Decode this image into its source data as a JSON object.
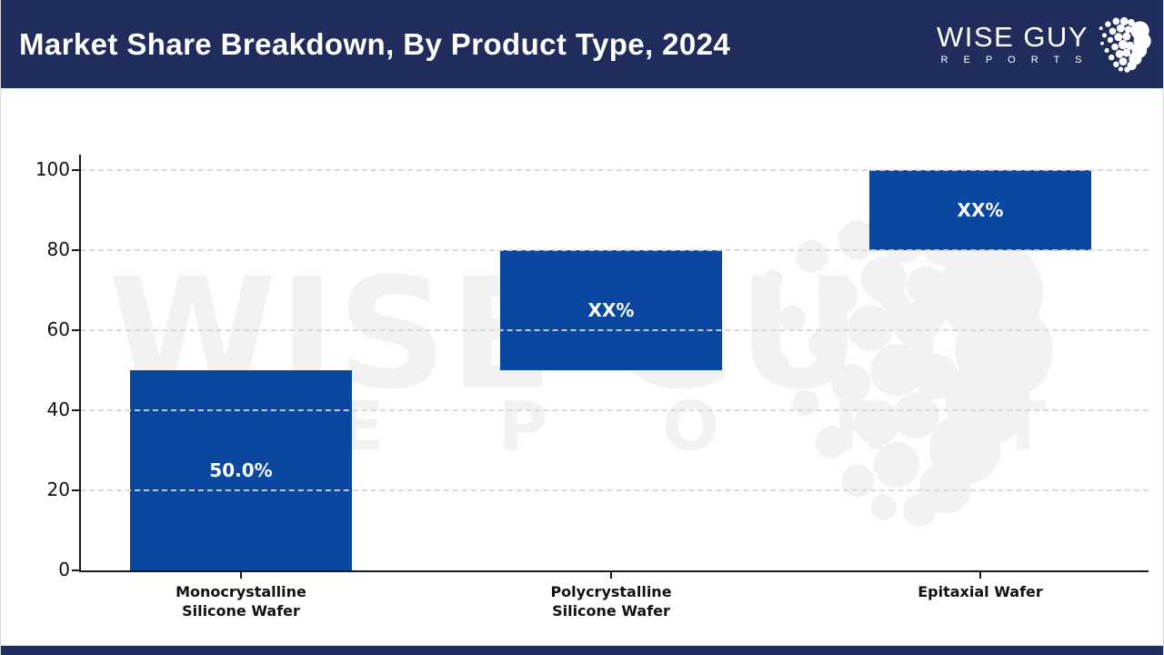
{
  "header": {
    "title": "Market Share Breakdown, By Product Type, 2024",
    "logo_line1": "WISE GUY",
    "logo_line2": "R E P O R T S"
  },
  "watermark": {
    "line1": "WISE GUY",
    "line2": "R E P O R T S"
  },
  "chart_data": {
    "type": "bar",
    "variant": "waterfall",
    "title": "Market Share Breakdown, By Product Type, 2024",
    "categories": [
      [
        "Monocrystalline",
        "Silicone Wafer"
      ],
      [
        "Polycrystalline",
        "Silicone Wafer"
      ],
      [
        "Epitaxial Wafer"
      ]
    ],
    "segments": [
      {
        "from": 0,
        "to": 50,
        "label": "50.0%"
      },
      {
        "from": 50,
        "to": 80,
        "label": "XX%"
      },
      {
        "from": 80,
        "to": 100,
        "label": "XX%"
      }
    ],
    "bar_labels": [
      "50.0%",
      "XX%",
      "XX%"
    ],
    "yticks": [
      "0",
      "20",
      "40",
      "60",
      "80",
      "100"
    ],
    "ytick_values": [
      0,
      20,
      40,
      60,
      80,
      100
    ],
    "ylim": [
      0,
      104
    ],
    "xlabel": "",
    "ylabel": "",
    "legend": "none",
    "grid": "horizontal-dashed",
    "colors": {
      "bar": "#0a47a1",
      "header_bg": "#202d5c",
      "grid": "#d6d6d6",
      "axis": "#1a1a1a",
      "bar_label_text": "#ffffff",
      "watermark": "#f2f2f2"
    }
  }
}
